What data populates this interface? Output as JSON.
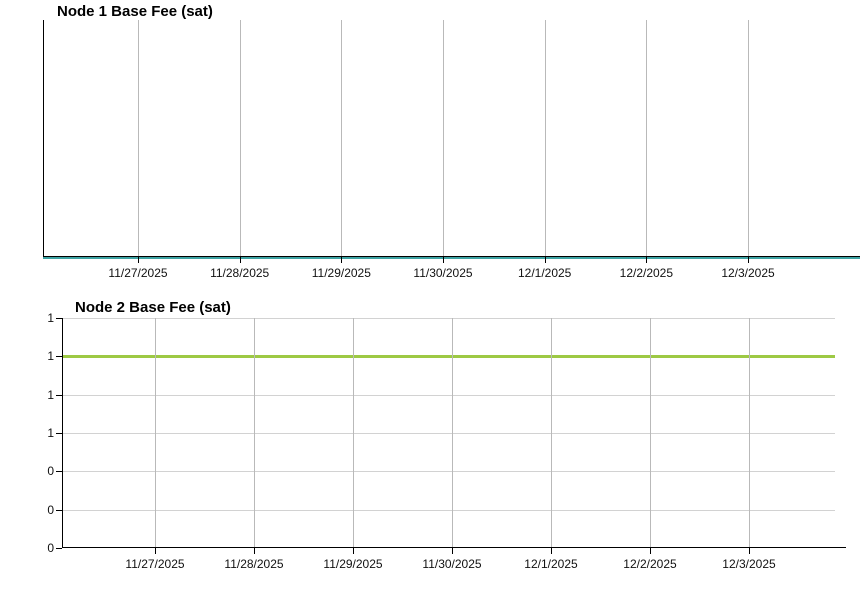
{
  "page": {
    "background": "#ffffff"
  },
  "chart_data": [
    {
      "type": "line",
      "title": "Node 1 Base Fee (sat)",
      "x": [
        "11/27/2025",
        "11/28/2025",
        "11/29/2025",
        "11/30/2025",
        "12/1/2025",
        "12/2/2025",
        "12/3/2025"
      ],
      "series": [
        {
          "name": "Node 1 Base Fee",
          "values": [
            0,
            0,
            0,
            0,
            0,
            0,
            0
          ],
          "color": "#3da3a3"
        }
      ],
      "ylim": [
        0,
        1
      ],
      "y_tick_labels": [],
      "xlabel": "",
      "ylabel": "",
      "grid": "vertical-only",
      "legend_position": "none",
      "axis_color": "#000000"
    },
    {
      "type": "line",
      "title": "Node 2 Base Fee (sat)",
      "x": [
        "11/27/2025",
        "11/28/2025",
        "11/29/2025",
        "11/30/2025",
        "12/1/2025",
        "12/2/2025",
        "12/3/2025"
      ],
      "series": [
        {
          "name": "Node 2 Base Fee",
          "values": [
            1,
            1,
            1,
            1,
            1,
            1,
            1
          ],
          "color": "#9dc944"
        }
      ],
      "ylim": [
        0,
        1.2
      ],
      "y_tick_labels": [
        "1",
        "1",
        "1",
        "1",
        "0",
        "0",
        "0"
      ],
      "xlabel": "",
      "ylabel": "",
      "grid": "full",
      "legend_position": "none",
      "axis_color": "#000000"
    }
  ]
}
